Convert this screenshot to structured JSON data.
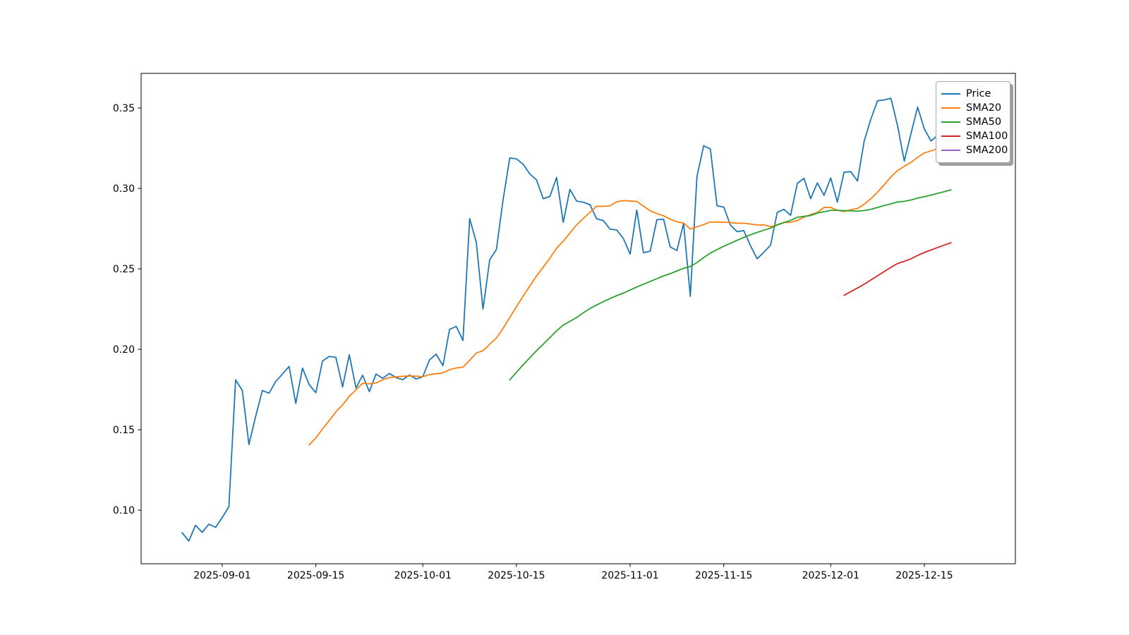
{
  "chart_data": {
    "type": "line",
    "title": "",
    "xlabel": "",
    "ylabel": "",
    "grid": false,
    "start_date": "2025-08-26",
    "frequency": "daily",
    "x_axis": {
      "tick_labels": [
        "2025-09-01",
        "2025-09-15",
        "2025-10-01",
        "2025-10-15",
        "2025-11-01",
        "2025-11-15",
        "2025-12-01",
        "2025-12-15"
      ],
      "tick_day_offsets": [
        6,
        20,
        36,
        50,
        67,
        81,
        97,
        111
      ],
      "xlim_day_offsets": [
        -6.13,
        124.62
      ]
    },
    "y_axis": {
      "tick_labels": [
        "0.10",
        "0.15",
        "0.20",
        "0.25",
        "0.30",
        "0.35"
      ],
      "tick_values": [
        0.1,
        0.15,
        0.2,
        0.25,
        0.3,
        0.35
      ],
      "ylim": [
        0.0667,
        0.3715
      ]
    },
    "legend": {
      "position": "upper right",
      "shadow": true
    },
    "series": [
      {
        "name": "Price",
        "color": "#1f77b4",
        "kind": "raw",
        "values": [
          0.086,
          0.0808,
          0.0906,
          0.0862,
          0.0913,
          0.0893,
          0.0954,
          0.1022,
          0.181,
          0.1744,
          0.1408,
          0.1583,
          0.1744,
          0.1727,
          0.18,
          0.1846,
          0.1893,
          0.1664,
          0.1883,
          0.1781,
          0.173,
          0.1927,
          0.1956,
          0.195,
          0.1766,
          0.1966,
          0.1759,
          0.1839,
          0.1737,
          0.1846,
          0.182,
          0.185,
          0.1824,
          0.1811,
          0.184,
          0.1815,
          0.183,
          0.1934,
          0.197,
          0.1898,
          0.2124,
          0.2142,
          0.2055,
          0.2812,
          0.2665,
          0.225,
          0.2556,
          0.2621,
          0.2928,
          0.3189,
          0.3184,
          0.315,
          0.309,
          0.3053,
          0.2936,
          0.295,
          0.3068,
          0.2789,
          0.2994,
          0.2921,
          0.2914,
          0.2899,
          0.2811,
          0.28,
          0.2746,
          0.2742,
          0.2688,
          0.2592,
          0.2866,
          0.26,
          0.261,
          0.2805,
          0.2809,
          0.2636,
          0.2614,
          0.2782,
          0.2329,
          0.3074,
          0.3265,
          0.3245,
          0.2892,
          0.2884,
          0.2772,
          0.2731,
          0.2738,
          0.2643,
          0.2563,
          0.2603,
          0.2647,
          0.2851,
          0.287,
          0.2833,
          0.3031,
          0.3063,
          0.2936,
          0.3034,
          0.2957,
          0.3065,
          0.2915,
          0.3101,
          0.3104,
          0.3046,
          0.3294,
          0.343,
          0.3545,
          0.355,
          0.356,
          0.339,
          0.317,
          0.334,
          0.3506,
          0.337,
          0.3295,
          0.333,
          0.329,
          0.331
        ]
      },
      {
        "name": "SMA20",
        "color": "#ff7f0e",
        "kind": "rolling_mean_of_price",
        "window": 20,
        "first_value": 0.1405,
        "last_value": 0.3278
      },
      {
        "name": "SMA50",
        "color": "#2ca02c",
        "kind": "rolling_mean_of_price",
        "window": 50,
        "first_value": 0.181,
        "last_value": 0.299
      },
      {
        "name": "SMA100",
        "color": "#d62728",
        "kind": "rolling_mean_of_price",
        "window": 100,
        "first_value": 0.2334,
        "last_value": 0.266
      },
      {
        "name": "SMA200",
        "color": "#9467bd",
        "kind": "rolling_mean_of_price",
        "window": 200,
        "note": "legend entry only; series shorter than window so no line is drawn"
      }
    ]
  }
}
